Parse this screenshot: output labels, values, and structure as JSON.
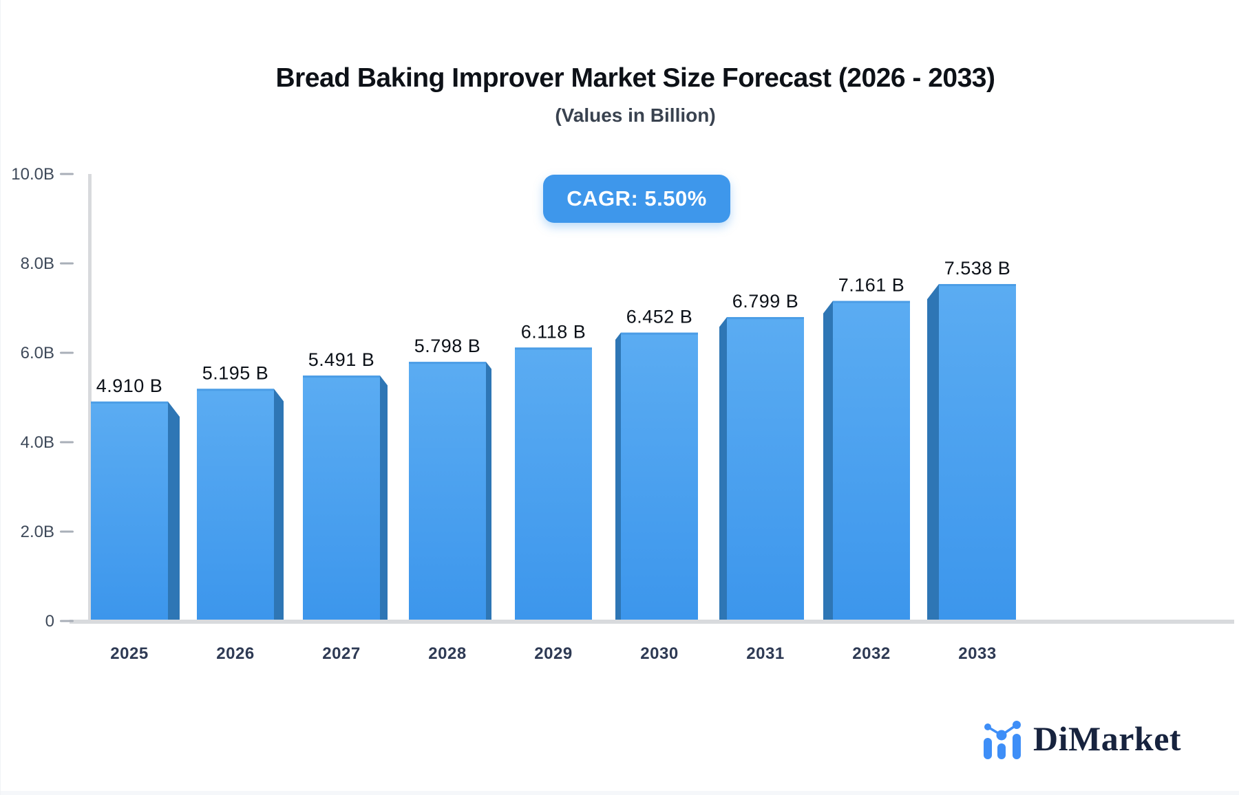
{
  "header": {
    "title": "Bread Baking Improver Market Size Forecast (2026 - 2033)",
    "subtitle": "(Values in Billion)"
  },
  "badge": {
    "label": "CAGR: 5.50%",
    "bg": "#3E97EB",
    "text_color": "#FFFFFF"
  },
  "chart_data": {
    "type": "bar",
    "title": "Bread Baking Improver Market Size Forecast (2026 - 2033)",
    "subtitle": "(Values in Billion)",
    "unit": "Billion",
    "categories": [
      "2025",
      "2026",
      "2027",
      "2028",
      "2029",
      "2030",
      "2031",
      "2032",
      "2033"
    ],
    "values": [
      4.91,
      5.195,
      5.491,
      5.798,
      6.118,
      6.452,
      6.799,
      7.161,
      7.538
    ],
    "value_labels": [
      "4.910 B",
      "5.195 B",
      "5.491 B",
      "5.798 B",
      "6.118 B",
      "6.452 B",
      "6.799 B",
      "7.161 B",
      "7.538 B"
    ],
    "y_ticks": [
      {
        "label": "10.0B",
        "value": 10
      },
      {
        "label": "8.0B",
        "value": 8
      },
      {
        "label": "6.0B",
        "value": 6
      },
      {
        "label": "4.0B",
        "value": 4
      },
      {
        "label": "2.0B",
        "value": 2
      },
      {
        "label": "0",
        "value": 0
      }
    ],
    "ylim": [
      0,
      10
    ],
    "grid": false,
    "legend": "none",
    "colors": {
      "bar_top": "#5BACF2",
      "bar_bottom": "#3C96EC",
      "bar_side": "#2E76B5",
      "bar_top_edge": "#4495DF",
      "axis": "#D8DADD",
      "tick_dash": "#A9AFB8",
      "tick_label": "#3E4959",
      "x_label": "#2E3A54",
      "value_label": "#0C1118"
    }
  },
  "logo": {
    "brand": "DiMarket",
    "icon": "bar-chart-logo-icon",
    "icon_color": "#3E8EF7",
    "text_color": "#17233E"
  }
}
